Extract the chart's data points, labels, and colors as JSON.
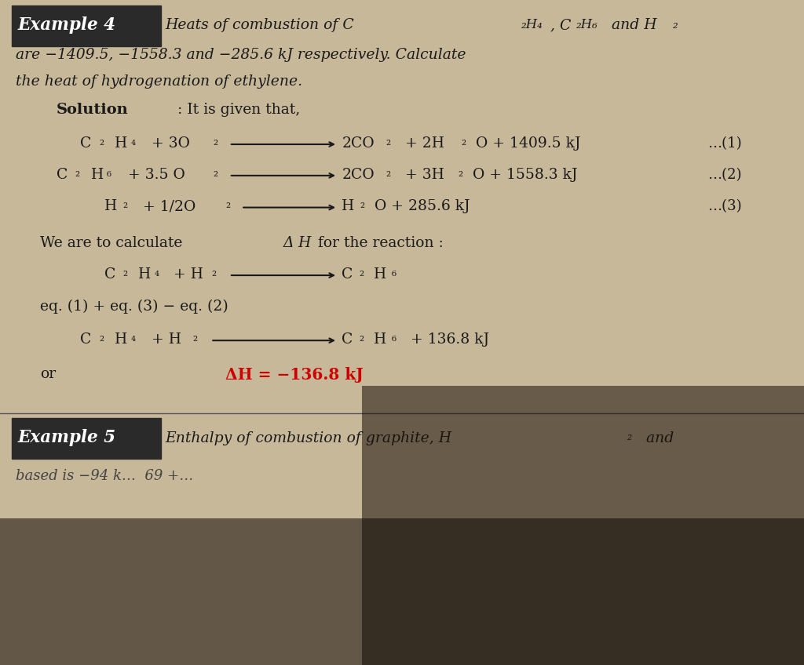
{
  "bg_color": "#c8b89a",
  "title_box_color": "#3a3a3a",
  "title_text": "Example 4",
  "title_rest": " Heats of combustion of C",
  "heading_line1": " Heats of combustion of C₂H₄, C₂H₆ and H₂",
  "heading_line2": "are −1409.5, −1558.3 and −285.6 kJ respectively. Calculate",
  "heading_line3": "the heat of hydrogenation of ethylene.",
  "solution_label": "Solution",
  "solution_rest": " : It is given that,",
  "eq1_left": "C₂H₄ + 3O₂",
  "eq1_arrow": "⟶",
  "eq1_right": "2CO₂ + 2H₂O + 1409.5 kJ",
  "eq1_num": "…(1)",
  "eq2_left": "C₂H₆ + 3.5 O₂",
  "eq2_arrow": "⟶",
  "eq2_right": "2CO₂ + 3H₂O + 1558.3 kJ",
  "eq2_num": "…(2)",
  "eq3_left": "H₂ + 1/2O₂",
  "eq3_arrow": "⟶",
  "eq3_right": "H₂O + 285.6 kJ",
  "eq3_num": "…(3)",
  "calc_line": "We are to calculate ΔH for the reaction :",
  "rxn_left": "C₂H₄ + H₂",
  "rxn_arrow": "⟶",
  "rxn_right": "C₂H₆",
  "eq_combo": "eq. (1) + eq. (3) − eq. (2)",
  "result_left": "C₂H₄ + H₂",
  "result_arrow": "⟶",
  "result_right": "C₂H₆ + 136.8 kJ",
  "or_text": "or",
  "final_eq": "ΔH = −136.8 kJ",
  "example5_label": "Example 5",
  "example5_rest": "  Enthalpy of combustion of graphite, H₂ and",
  "bottom_text": "based is −94 k…  69 +…",
  "text_color": "#1a1a1a",
  "italic_color": "#1a1a1a",
  "red_color": "#cc0000",
  "example_bg": "#2a2a2a",
  "example_text_color": "#ffffff"
}
